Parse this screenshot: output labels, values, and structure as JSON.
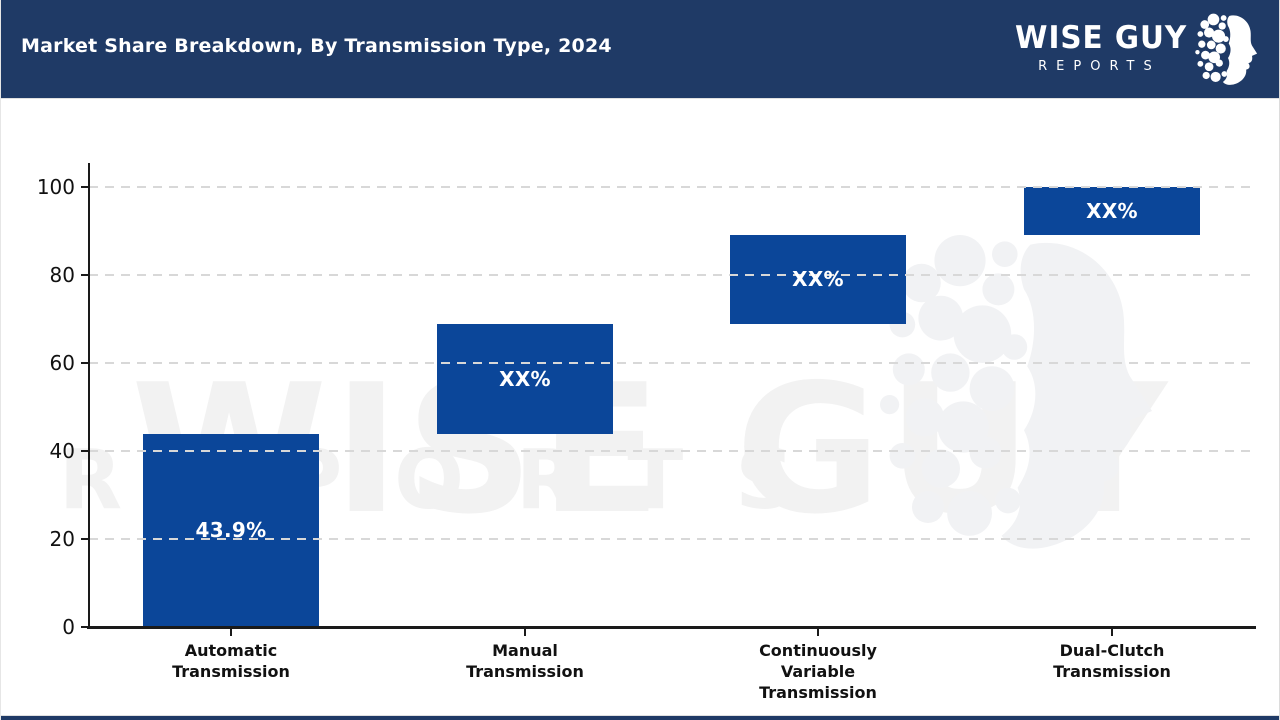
{
  "header": {
    "title": "Market Share Breakdown, By Transmission Type, 2024",
    "logo": {
      "line1": "WISE GUY",
      "line2": "REPORTS"
    }
  },
  "watermark": {
    "line1": "WISE GUY",
    "line2": "REPORTS"
  },
  "footer": {},
  "colors": {
    "header_bg": "#1f3a66",
    "bar_blue": "#0b4699",
    "gridline": "#d8d8d8",
    "axis": "#1a1a1a",
    "watermark_gray": "#f2f2f2",
    "title_text": "#ffffff",
    "bar_label_text": "#ffffff"
  },
  "chart_data": {
    "type": "bar",
    "subtype": "waterfall",
    "title": "Market Share Breakdown, By Transmission Type, 2024",
    "categories": [
      "Automatic\nTransmission",
      "Manual\nTransmission",
      "Continuously\nVariable\nTransmission",
      "Dual-Clutch\nTransmission"
    ],
    "segments": [
      {
        "category": "Automatic Transmission",
        "start": 0,
        "end": 43.9,
        "value": 43.9,
        "label": "43.9%"
      },
      {
        "category": "Manual Transmission",
        "start": 43.9,
        "end": 68.9,
        "value": 25.0,
        "label": "XX%"
      },
      {
        "category": "Continuously Variable Transmission",
        "start": 68.9,
        "end": 89.1,
        "value": 20.2,
        "label": "XX%"
      },
      {
        "category": "Dual-Clutch Transmission",
        "start": 89.1,
        "end": 100,
        "value": 10.9,
        "label": "XX%"
      }
    ],
    "y_ticks": [
      0,
      20,
      40,
      60,
      80,
      100
    ],
    "ylim": [
      0,
      105
    ],
    "xlabel": "",
    "ylabel": "",
    "grid": "horizontal dashed, drawn over bars",
    "legend": "none",
    "bar_color": "#0b4699"
  }
}
